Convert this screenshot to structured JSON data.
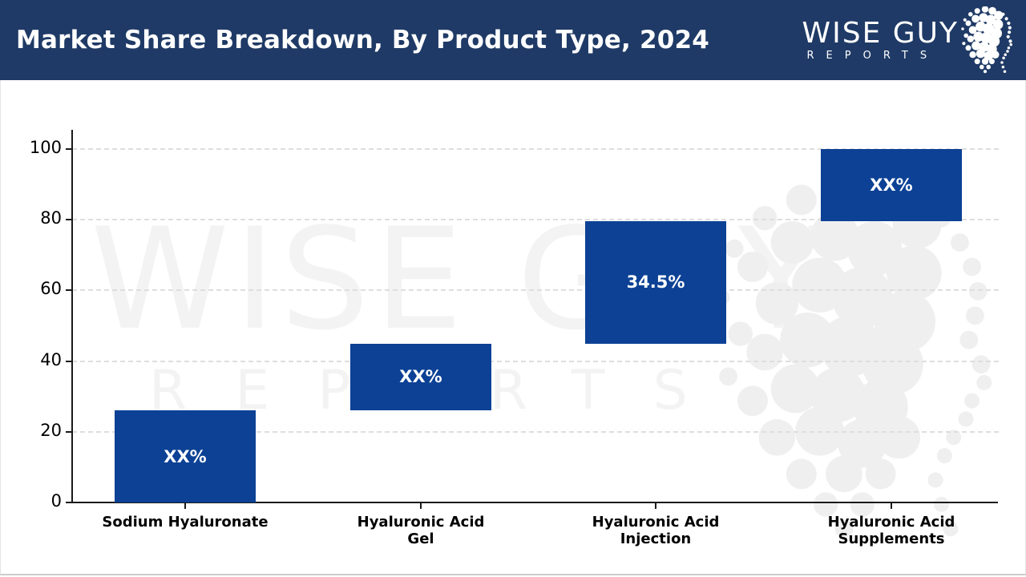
{
  "header": {
    "title": "Market Share Breakdown, By Product Type, 2024",
    "logo": {
      "name": "WISE GUY",
      "subtitle": "REPORTS"
    }
  },
  "watermark": {
    "line1": "WISE GUY",
    "line2": "REPORTS"
  },
  "colors": {
    "header_bg": "#1f3a66",
    "bar": "#0c4195",
    "grid": "#dedede",
    "axis": "#1a1a1a",
    "bar_label_text": "#ffffff",
    "watermark": "#f3f3f3"
  },
  "chart_data": {
    "type": "bar",
    "subtype": "floating-range-waterfall",
    "title": "Market Share Breakdown, By Product Type, 2024",
    "bars": [
      {
        "category_lines": [
          "Sodium Hyaluronate"
        ],
        "from": 0,
        "to": 26,
        "label": "XX%"
      },
      {
        "category_lines": [
          "Hyaluronic Acid",
          "Gel"
        ],
        "from": 26,
        "to": 45,
        "label": "XX%"
      },
      {
        "category_lines": [
          "Hyaluronic Acid",
          "Injection"
        ],
        "from": 45,
        "to": 79.5,
        "label": "34.5%"
      },
      {
        "category_lines": [
          "Hyaluronic Acid",
          "Supplements"
        ],
        "from": 79.5,
        "to": 100,
        "label": "XX%"
      }
    ],
    "yticks": [
      0,
      20,
      40,
      60,
      80,
      100
    ],
    "ylim": [
      0,
      105
    ],
    "xlabel": "",
    "ylabel": "",
    "grid": "horizontal-dashed",
    "legend": "none",
    "bar_color": "#0c4195"
  }
}
